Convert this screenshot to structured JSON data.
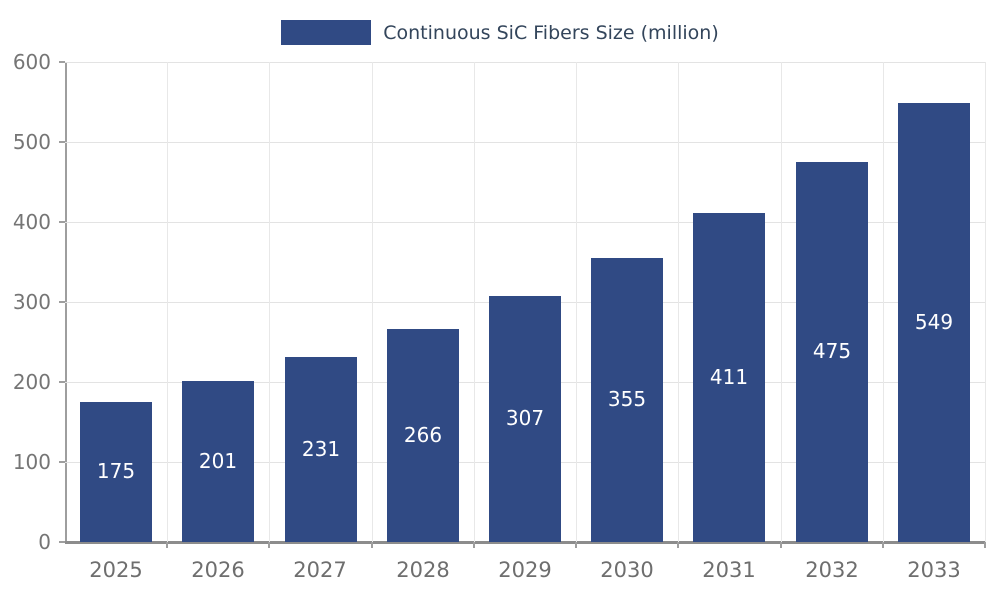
{
  "legend": {
    "label": "Continuous SiC Fibers Size (million)"
  },
  "colors": {
    "bar": "#304a84",
    "grid_h": "#e3e3e3",
    "grid_v": "#e8e8e8",
    "axis": "#8c8c8c",
    "tick_text": "#757575",
    "legend_text": "#33455b",
    "value_label": "#ffffff"
  },
  "chart_data": {
    "type": "bar",
    "title": "Continuous SiC Fibers Size (million)",
    "categories": [
      "2025",
      "2026",
      "2027",
      "2028",
      "2029",
      "2030",
      "2031",
      "2032",
      "2033"
    ],
    "values": [
      175,
      201,
      231,
      266,
      307,
      355,
      411,
      475,
      549
    ],
    "series_name": "Continuous SiC Fibers Size (million)",
    "xlabel": "",
    "ylabel": "",
    "ylim": [
      0,
      600
    ],
    "yticks": [
      0,
      100,
      200,
      300,
      400,
      500,
      600
    ],
    "grid": true,
    "legend_position": "top",
    "value_labels_shown": true
  }
}
